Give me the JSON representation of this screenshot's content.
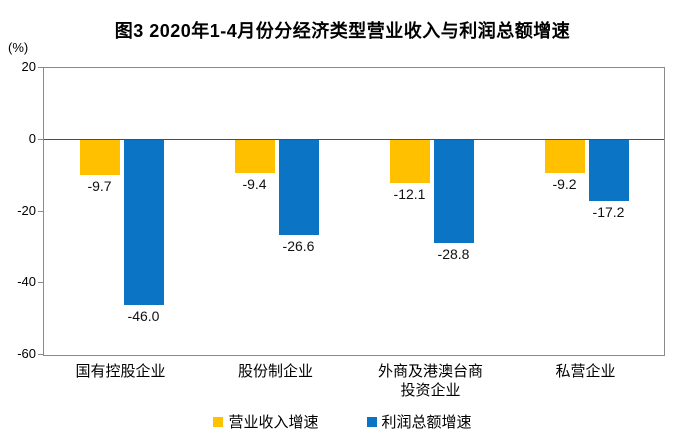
{
  "chart_data": {
    "type": "bar",
    "title": "图3 2020年1-4月份分经济类型营业收入与利润总额增速",
    "unit_label": "(%)",
    "categories": [
      "国有控股企业",
      "股份制企业",
      "外商及港澳台商\n投资企业",
      "私营企业"
    ],
    "series": [
      {
        "name": "营业收入增速",
        "color": "#FFC000",
        "values": [
          -9.7,
          -9.4,
          -12.1,
          -9.2
        ]
      },
      {
        "name": "利润总额增速",
        "color": "#0B74C4",
        "values": [
          -46.0,
          -26.6,
          -28.8,
          -17.2
        ]
      }
    ],
    "value_labels": [
      "-9.7",
      "-46.0",
      "-9.4",
      "-26.6",
      "-12.1",
      "-28.8",
      "-9.2",
      "-17.2"
    ],
    "ylim": [
      -60,
      20
    ],
    "yticks": [
      20,
      0,
      -20,
      -40,
      -60
    ],
    "grid": false,
    "legend_position": "bottom",
    "axis_color": "#8a8a8a",
    "zero_line_color": "#4d4d4d"
  }
}
